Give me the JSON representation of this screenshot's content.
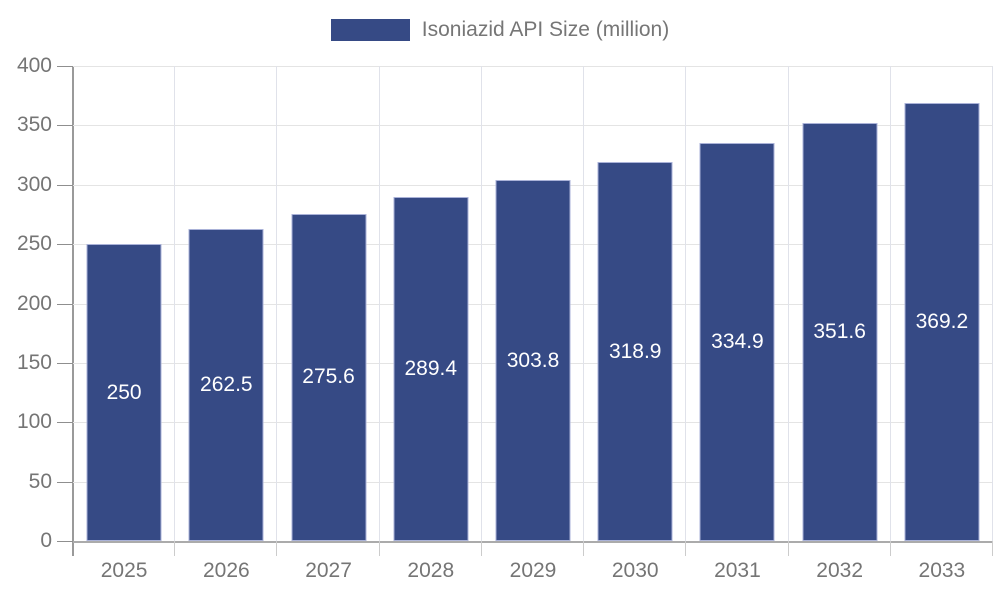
{
  "chart_data": {
    "type": "bar",
    "title": "",
    "categories": [
      "2025",
      "2026",
      "2027",
      "2028",
      "2029",
      "2030",
      "2031",
      "2032",
      "2033"
    ],
    "series": [
      {
        "name": "Isoniazid API Size (million)",
        "values": [
          250,
          262.5,
          275.6,
          289.4,
          303.8,
          318.9,
          334.9,
          351.6,
          369.2
        ],
        "value_labels": [
          "250",
          "262.5",
          "275.6",
          "289.4",
          "303.8",
          "318.9",
          "334.9",
          "351.6",
          "369.2"
        ]
      }
    ],
    "xlabel": "",
    "ylabel": "",
    "ylim": [
      0,
      400
    ],
    "yticks": [
      0,
      50,
      100,
      150,
      200,
      250,
      300,
      350,
      400
    ],
    "grid": true,
    "legend_position": "top",
    "style": {
      "bar_color": "#364a85",
      "bar_edge_color": "#aab2d8",
      "value_label_color": "#ffffff",
      "axis_text_color": "#757575",
      "legend_text_color": "#767676",
      "hgrid_color": "#e4e4e4",
      "vgrid_color": "#e0e2ea",
      "axis_line_color": "#9a9a9a",
      "background_color": "#ffffff"
    }
  }
}
